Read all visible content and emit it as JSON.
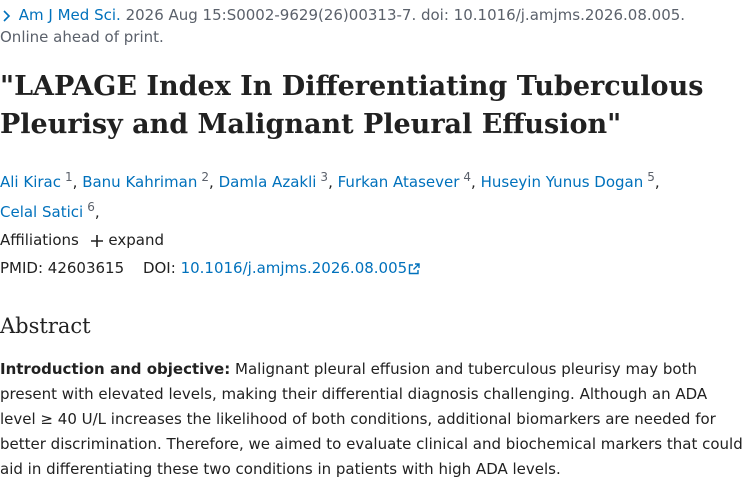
{
  "citation": {
    "journal": "Am J Med Sci.",
    "details": "2026 Aug 15:S0002-9629(26)00313-7. doi: 10.1016/j.amjms.2026.08.005.",
    "status": "Online ahead of print."
  },
  "title": "\"LAPAGE Index In Differentiating Tuberculous Pleurisy and Malignant Pleural Effusion\"",
  "author_separator": ",",
  "authors": [
    {
      "name": "Ali Kirac",
      "affiliation": "1"
    },
    {
      "name": "Banu Kahriman",
      "affiliation": "2"
    },
    {
      "name": "Damla Azakli",
      "affiliation": "3"
    },
    {
      "name": "Furkan Atasever",
      "affiliation": "4"
    },
    {
      "name": "Huseyin Yunus Dogan",
      "affiliation": "5"
    },
    {
      "name": "Celal Satici",
      "affiliation": "6"
    }
  ],
  "affiliations": {
    "label": "Affiliations",
    "toggle": "expand"
  },
  "identifiers": {
    "pmid_label": "PMID:",
    "pmid": "42603615",
    "doi_label": "DOI:",
    "doi": "10.1016/j.amjms.2026.08.005"
  },
  "abstract": {
    "heading": "Abstract",
    "section_label": "Introduction and objective:",
    "text": "Malignant pleural effusion and tuberculous pleurisy may both present with elevated levels, making their differential diagnosis challenging. Although an ADA level ≥ 40 U/L increases the likelihood of both conditions, additional biomarkers are needed for better discrimination. Therefore, we aimed to evaluate clinical and biochemical markers that could aid in differentiating these two conditions in patients with high ADA levels."
  }
}
